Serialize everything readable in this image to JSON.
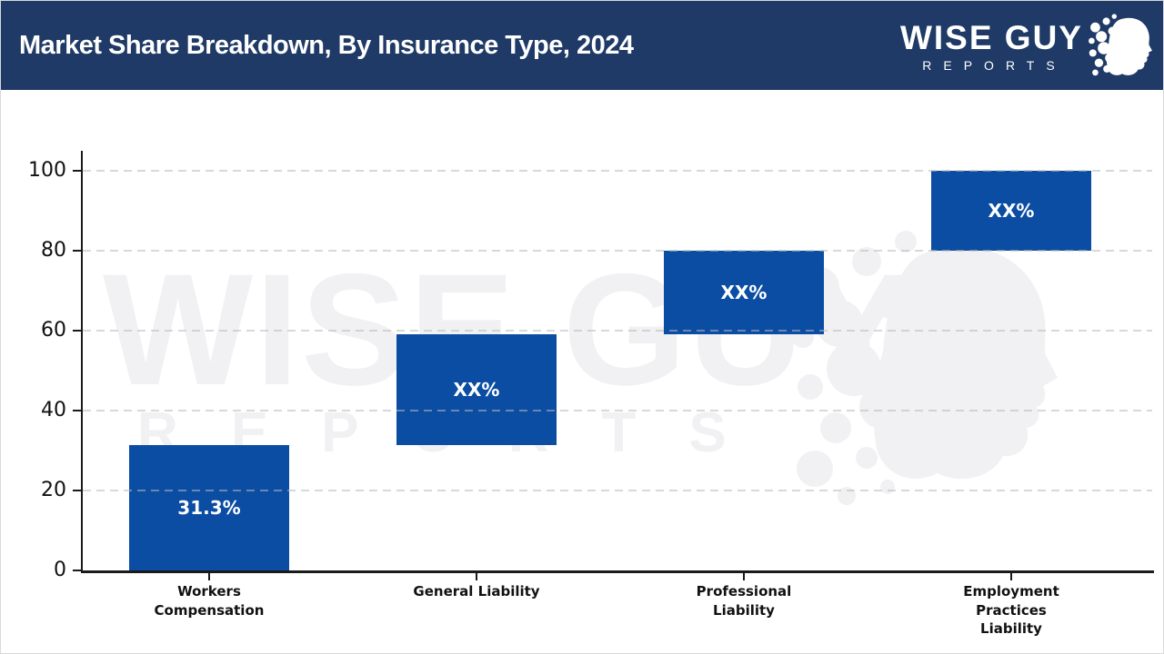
{
  "header": {
    "logo": {
      "name": "WISE GUY",
      "sub": "REPORTS"
    }
  },
  "watermark": {
    "line1": "WISE GUY",
    "line2": "REPORTS"
  },
  "chart_data": {
    "type": "bar",
    "subtype": "waterfall-floating-bars",
    "title": "Market Share Breakdown, By Insurance Type, 2024",
    "categories": [
      "Workers\nCompensation",
      "General Liability",
      "Professional\nLiability",
      "Employment\nPractices\nLiability"
    ],
    "segments": [
      {
        "category": "Workers Compensation",
        "start": 0,
        "end": 31.3,
        "label": "31.3%"
      },
      {
        "category": "General Liability",
        "start": 31.3,
        "end": 59,
        "label": "XX%"
      },
      {
        "category": "Professional Liability",
        "start": 59,
        "end": 80,
        "label": "XX%"
      },
      {
        "category": "Employment Practices Liability",
        "start": 80,
        "end": 100,
        "label": "XX%"
      }
    ],
    "xlabel": "",
    "ylabel": "",
    "ylim": [
      0,
      100
    ],
    "yticks": [
      0,
      20,
      40,
      60,
      80,
      100
    ],
    "grid": "horizontal dashed",
    "legend": "none",
    "colors": {
      "bar": "#0b4da2",
      "bar_label": "#ffffff",
      "header_bg": "#1f3a66",
      "axis": "#1a1a1a",
      "watermark": "#f1f1f4"
    }
  }
}
